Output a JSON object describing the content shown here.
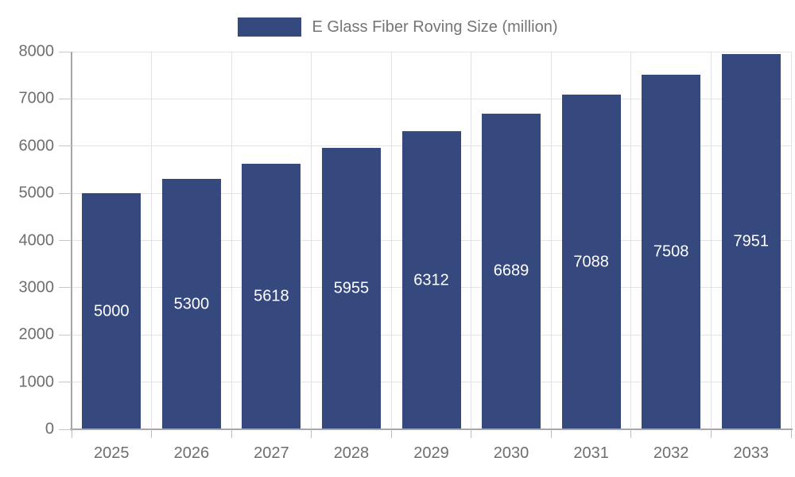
{
  "chart": {
    "legend": {
      "label": "E Glass Fiber Roving Size (million)"
    },
    "colors": {
      "bar": "#36497f",
      "bar_label_text": "#ffffff",
      "axis_text": "#6e6e6e",
      "legend_text": "#757575",
      "gridline": "#e4e4e8",
      "axis_line": "#a6a6a6"
    }
  },
  "chart_data": {
    "type": "bar",
    "title": "E Glass Fiber Roving Size (million)",
    "series_name": "E Glass Fiber Roving Size (million)",
    "categories": [
      "2025",
      "2026",
      "2027",
      "2028",
      "2029",
      "2030",
      "2031",
      "2032",
      "2033"
    ],
    "values": [
      5000,
      5300,
      5618,
      5955,
      6312,
      6689,
      7088,
      7508,
      7951
    ],
    "xlabel": "",
    "ylabel": "",
    "ylim": [
      0,
      8000
    ],
    "yticks": [
      0,
      1000,
      2000,
      3000,
      4000,
      5000,
      6000,
      7000,
      8000
    ],
    "grid": true,
    "legend_position": "top-center",
    "value_labels": "inside-center"
  }
}
